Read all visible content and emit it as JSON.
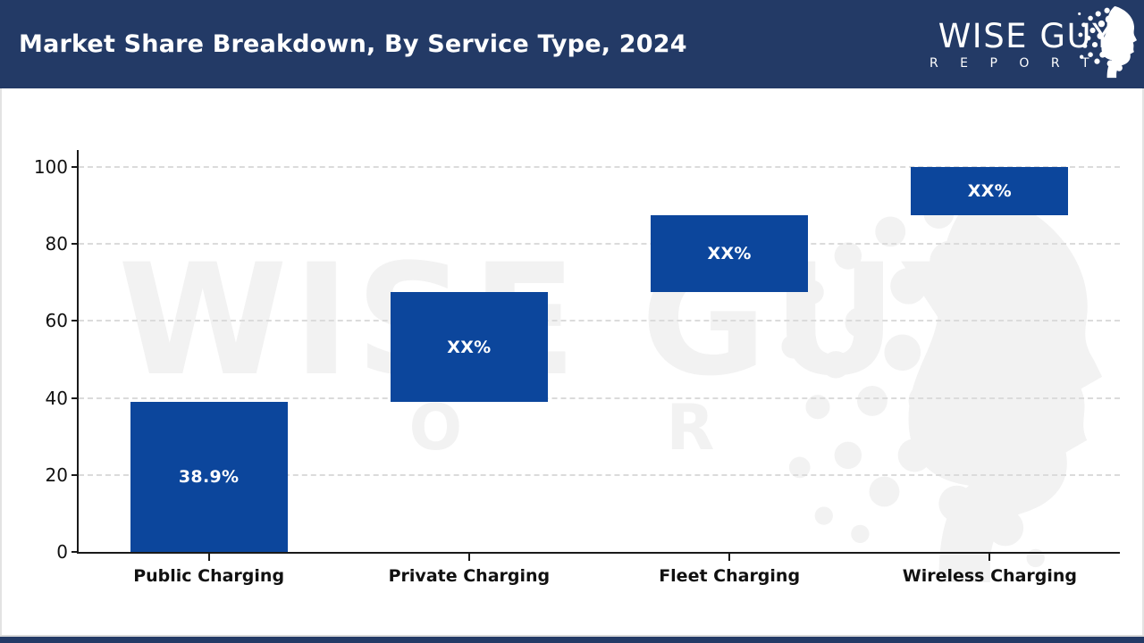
{
  "header": {
    "title": "Market Share Breakdown, By Service Type, 2024",
    "bg_color": "#233A66",
    "logo": {
      "line1": "WISE GUY",
      "line2": "R E P O R T S"
    }
  },
  "watermark": {
    "line1": "WISE GUY",
    "line2": "P O R T S"
  },
  "footer": {
    "bg_color": "#233A66"
  },
  "chart_data": {
    "type": "bar",
    "subtype": "waterfall",
    "title": "Market Share Breakdown, By Service Type, 2024",
    "categories": [
      "Public Charging",
      "Private Charging",
      "Fleet Charging",
      "Wireless Charging"
    ],
    "bars": [
      {
        "category": "Public Charging",
        "base": 0,
        "top": 38.9,
        "label": "38.9%"
      },
      {
        "category": "Private Charging",
        "base": 38.9,
        "top": 67.5,
        "label": "XX%"
      },
      {
        "category": "Fleet Charging",
        "base": 67.5,
        "top": 87.5,
        "label": "XX%"
      },
      {
        "category": "Wireless Charging",
        "base": 87.5,
        "top": 100,
        "label": "XX%"
      }
    ],
    "ylim": [
      0,
      100
    ],
    "yticks": [
      0,
      20,
      40,
      60,
      80,
      100
    ],
    "bar_color": "#0C469C",
    "grid": "horizontal-dashed",
    "grid_color": "#DBDBDB",
    "legend": "none"
  }
}
